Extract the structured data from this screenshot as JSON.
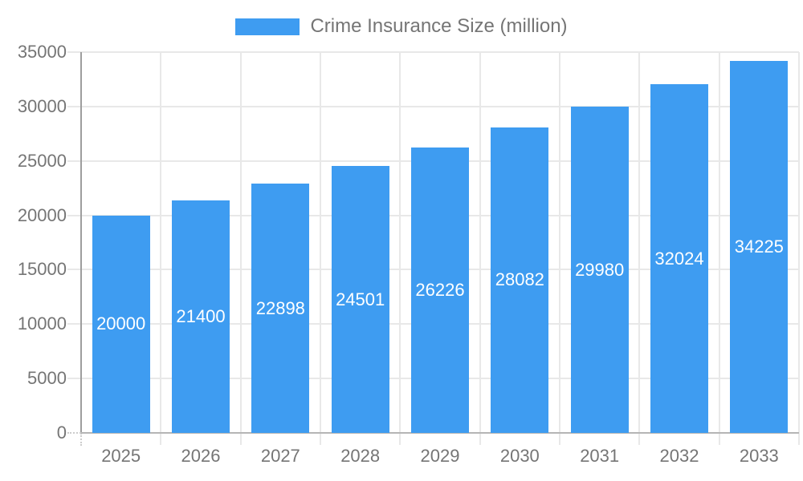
{
  "chart_data": {
    "type": "bar",
    "legend": {
      "position": "top",
      "label": "Crime Insurance Size (million)"
    },
    "categories": [
      "2025",
      "2026",
      "2027",
      "2028",
      "2029",
      "2030",
      "2031",
      "2032",
      "2033"
    ],
    "series": [
      {
        "name": "Crime Insurance Size (million)",
        "values": [
          20000,
          21400,
          22898,
          24501,
          26226,
          28082,
          29980,
          32024,
          34225
        ]
      }
    ],
    "bar_value_labels": [
      "20000",
      "21400",
      "22898",
      "24501",
      "26226",
      "28082",
      "29980",
      "32024",
      "34225"
    ],
    "ylim": [
      0,
      35000
    ],
    "y_ticks": [
      0,
      5000,
      10000,
      15000,
      20000,
      25000,
      30000,
      35000
    ],
    "grid": true,
    "colors": {
      "bar": "#3E9CF1",
      "bar_label_text": "#FFFFFF",
      "axis_text": "#757575",
      "legend_text": "#757575",
      "gridline": "#E8E8E8",
      "y_axis_line": "#9E9E9E",
      "x_axis_line": "#B5B5B5",
      "zero_tick": "#CCCCCC",
      "background": "#FFFFFF"
    }
  }
}
